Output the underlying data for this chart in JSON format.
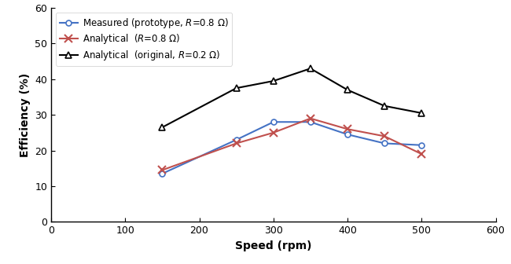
{
  "measured_x": [
    150,
    250,
    300,
    350,
    400,
    450,
    500
  ],
  "measured_y": [
    13.5,
    23.0,
    28.0,
    28.0,
    24.5,
    22.0,
    21.5
  ],
  "analytical_08_x": [
    150,
    250,
    300,
    350,
    400,
    450,
    500
  ],
  "analytical_08_y": [
    14.5,
    22.0,
    25.0,
    29.0,
    26.0,
    24.0,
    19.0
  ],
  "analytical_02_x": [
    150,
    250,
    300,
    350,
    400,
    450,
    500
  ],
  "analytical_02_y": [
    26.5,
    37.5,
    39.5,
    43.0,
    37.0,
    32.5,
    30.5
  ],
  "measured_color": "#4472C4",
  "analytical_08_color": "#C0504D",
  "analytical_02_color": "#000000",
  "xlabel": "Speed (rpm)",
  "ylabel": "Efficiency (%)",
  "xlim": [
    0,
    600
  ],
  "ylim": [
    0,
    60
  ],
  "xticks": [
    0,
    100,
    200,
    300,
    400,
    500,
    600
  ],
  "yticks": [
    0,
    10,
    20,
    30,
    40,
    50,
    60
  ],
  "legend_measured": "Measured (prototype, $R$=0.8 Ω)",
  "legend_analytical_08": "Analytical  ($R$=0.8 Ω)",
  "legend_analytical_02": "Analytical  (original, $R$=0.2 Ω)"
}
